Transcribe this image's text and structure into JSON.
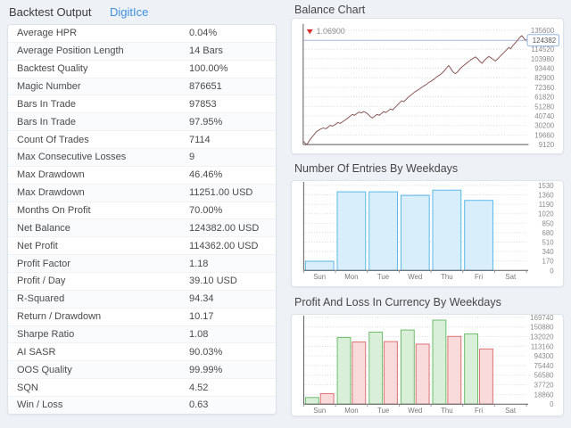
{
  "header": {
    "title": "Backtest Output",
    "link": "DigitIce"
  },
  "table": {
    "rows": [
      {
        "label": "Average HPR",
        "value": "0.04%"
      },
      {
        "label": "Average Position Length",
        "value": "14 Bars"
      },
      {
        "label": "Backtest Quality",
        "value": "100.00%"
      },
      {
        "label": "Magic Number",
        "value": "876651"
      },
      {
        "label": "Bars In Trade",
        "value": "97853"
      },
      {
        "label": "Bars In Trade",
        "value": "97.95%"
      },
      {
        "label": "Count Of Trades",
        "value": "7114"
      },
      {
        "label": "Max Consecutive Losses",
        "value": "9"
      },
      {
        "label": "Max Drawdown",
        "value": "46.46%"
      },
      {
        "label": "Max Drawdown",
        "value": "11251.00 USD"
      },
      {
        "label": "Months On Profit",
        "value": "70.00%"
      },
      {
        "label": "Net Balance",
        "value": "124382.00 USD"
      },
      {
        "label": "Net Profit",
        "value": "114362.00 USD"
      },
      {
        "label": "Profit Factor",
        "value": "1.18"
      },
      {
        "label": "Profit / Day",
        "value": "39.10 USD"
      },
      {
        "label": "R-Squared",
        "value": "94.34"
      },
      {
        "label": "Return / Drawdown",
        "value": "10.17"
      },
      {
        "label": "Sharpe Ratio",
        "value": "1.08"
      },
      {
        "label": "AI SASR",
        "value": "90.03%"
      },
      {
        "label": "OOS Quality",
        "value": "99.99%"
      },
      {
        "label": "SQN",
        "value": "4.52"
      },
      {
        "label": "Win / Loss",
        "value": "0.63"
      }
    ]
  },
  "chart_data": [
    {
      "type": "line",
      "title": "Balance Chart",
      "ylim": [
        9120,
        135600
      ],
      "yticks": [
        135600,
        114520,
        103980,
        93440,
        82900,
        72360,
        61820,
        51280,
        40740,
        30200,
        19660,
        9120
      ],
      "current_value": 124382,
      "current_value_label": "124382",
      "annotation": {
        "symbol": "triangle-down-icon",
        "label": "1.06900",
        "symbol_color": "#d92b2b"
      },
      "line_color": "#8a5757",
      "current_line_color": "#a9b6d3",
      "grid": true,
      "legend": "none",
      "series": [
        {
          "name": "Balance",
          "points": [
            [
              0.0,
              13000
            ],
            [
              0.01,
              10200
            ],
            [
              0.018,
              9600
            ],
            [
              0.03,
              14500
            ],
            [
              0.045,
              19000
            ],
            [
              0.06,
              23500
            ],
            [
              0.075,
              26000
            ],
            [
              0.09,
              27500
            ],
            [
              0.1,
              26500
            ],
            [
              0.11,
              28000
            ],
            [
              0.12,
              30500
            ],
            [
              0.13,
              29500
            ],
            [
              0.145,
              31500
            ],
            [
              0.155,
              33500
            ],
            [
              0.165,
              32500
            ],
            [
              0.18,
              35000
            ],
            [
              0.195,
              37500
            ],
            [
              0.21,
              40500
            ],
            [
              0.22,
              42500
            ],
            [
              0.23,
              41500
            ],
            [
              0.24,
              43500
            ],
            [
              0.25,
              45000
            ],
            [
              0.26,
              44000
            ],
            [
              0.27,
              45500
            ],
            [
              0.28,
              44500
            ],
            [
              0.29,
              42500
            ],
            [
              0.3,
              40000
            ],
            [
              0.31,
              38500
            ],
            [
              0.32,
              40500
            ],
            [
              0.33,
              42500
            ],
            [
              0.34,
              41500
            ],
            [
              0.35,
              43500
            ],
            [
              0.36,
              45500
            ],
            [
              0.37,
              44500
            ],
            [
              0.38,
              46500
            ],
            [
              0.39,
              48500
            ],
            [
              0.4,
              47500
            ],
            [
              0.41,
              50000
            ],
            [
              0.42,
              52500
            ],
            [
              0.43,
              55000
            ],
            [
              0.44,
              57500
            ],
            [
              0.45,
              56500
            ],
            [
              0.46,
              59000
            ],
            [
              0.47,
              61500
            ],
            [
              0.48,
              63500
            ],
            [
              0.49,
              65500
            ],
            [
              0.5,
              67500
            ],
            [
              0.51,
              69000
            ],
            [
              0.52,
              70500
            ],
            [
              0.53,
              72500
            ],
            [
              0.54,
              74000
            ],
            [
              0.55,
              75500
            ],
            [
              0.56,
              77500
            ],
            [
              0.57,
              79000
            ],
            [
              0.58,
              80500
            ],
            [
              0.59,
              82500
            ],
            [
              0.6,
              84500
            ],
            [
              0.61,
              86000
            ],
            [
              0.62,
              88000
            ],
            [
              0.63,
              90500
            ],
            [
              0.64,
              93500
            ],
            [
              0.65,
              96500
            ],
            [
              0.658,
              94000
            ],
            [
              0.665,
              91000
            ],
            [
              0.672,
              89000
            ],
            [
              0.68,
              87500
            ],
            [
              0.69,
              89500
            ],
            [
              0.7,
              92500
            ],
            [
              0.71,
              95000
            ],
            [
              0.72,
              97000
            ],
            [
              0.73,
              99000
            ],
            [
              0.74,
              101000
            ],
            [
              0.75,
              103000
            ],
            [
              0.76,
              104500
            ],
            [
              0.77,
              106000
            ],
            [
              0.78,
              104000
            ],
            [
              0.79,
              101000
            ],
            [
              0.8,
              99000
            ],
            [
              0.81,
              102000
            ],
            [
              0.82,
              104500
            ],
            [
              0.83,
              106500
            ],
            [
              0.84,
              105000
            ],
            [
              0.85,
              103000
            ],
            [
              0.86,
              101500
            ],
            [
              0.87,
              104000
            ],
            [
              0.88,
              106500
            ],
            [
              0.89,
              109000
            ],
            [
              0.9,
              111500
            ],
            [
              0.91,
              114000
            ],
            [
              0.92,
              116500
            ],
            [
              0.928,
              115000
            ],
            [
              0.935,
              118000
            ],
            [
              0.945,
              120500
            ],
            [
              0.955,
              123500
            ],
            [
              0.965,
              126500
            ],
            [
              0.972,
              128500
            ],
            [
              0.978,
              129500
            ],
            [
              0.984,
              127500
            ],
            [
              0.99,
              125500
            ],
            [
              1.0,
              124382
            ]
          ]
        }
      ]
    },
    {
      "type": "bar",
      "title": "Number Of Entries By Weekdays",
      "categories": [
        "Sun",
        "Mon",
        "Tue",
        "Wed",
        "Thu",
        "Fri",
        "Sat"
      ],
      "values": [
        165,
        1415,
        1415,
        1350,
        1445,
        1260,
        0
      ],
      "ylim": [
        0,
        1530
      ],
      "yticks": [
        0,
        170,
        340,
        510,
        680,
        850,
        1020,
        1190,
        1360,
        1530
      ],
      "grid": true,
      "legend": "none",
      "bar_fill": "#d9eefb",
      "bar_stroke": "#58b8e8"
    },
    {
      "type": "bar",
      "title": "Profit And Loss In Currency By Weekdays",
      "categories": [
        "Sun",
        "Mon",
        "Tue",
        "Wed",
        "Thu",
        "Fri",
        "Sat"
      ],
      "series": [
        {
          "name": "Profit",
          "values": [
            13000,
            130500,
            141000,
            145000,
            164500,
            137500,
            0
          ],
          "fill": "#d9efd7",
          "stroke": "#6cbc6c"
        },
        {
          "name": "Loss",
          "values": [
            20500,
            121500,
            122500,
            117500,
            132500,
            108000,
            0
          ],
          "fill": "#f9dbdb",
          "stroke": "#dc7070"
        }
      ],
      "ylim": [
        0,
        169740
      ],
      "yticks": [
        0,
        18860,
        37720,
        56580,
        75440,
        94300,
        113160,
        132020,
        150880,
        169740
      ],
      "grid": true,
      "legend": "none"
    }
  ],
  "colors": {
    "page_bg": "#eef1f6",
    "panel_border": "#dde3ea",
    "grid_dotted": "#d4d8dd",
    "axis": "#5a5a5a",
    "tick_text": "#8a8a8a",
    "link": "#3d8fdb"
  }
}
